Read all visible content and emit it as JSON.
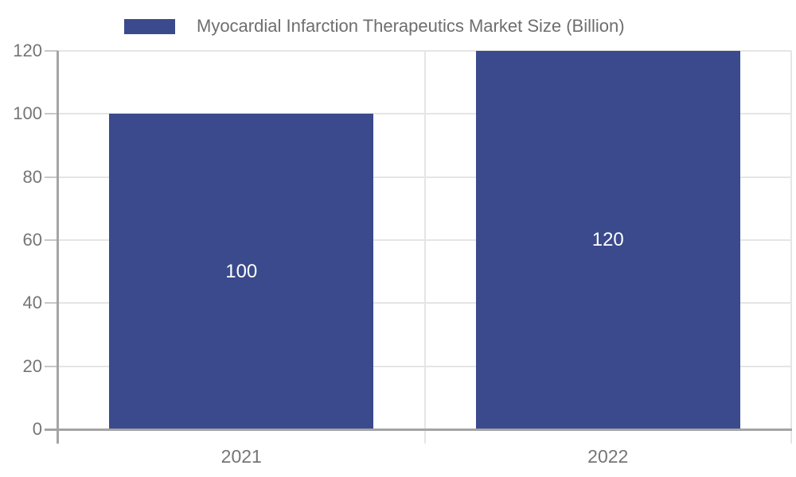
{
  "colors": {
    "bar": "#3a4a8c",
    "axis_line": "#a4a4a4",
    "grid_line": "#e5e5e5",
    "tick_mark": "#c8c8c8",
    "tick_text": "#757575",
    "legend_text": "#6e6e6e",
    "value_label_text": "#ffffff",
    "background": "#ffffff"
  },
  "chart_data": {
    "type": "bar",
    "title": "Myocardial Infarction Therapeutics Market Size (Billion)",
    "categories": [
      "2021",
      "2022"
    ],
    "values": [
      100,
      120
    ],
    "bar_labels": [
      "100",
      "120"
    ],
    "xlabel": "",
    "ylabel": "",
    "ylim": [
      0,
      120
    ],
    "yticks": [
      0,
      20,
      40,
      60,
      80,
      100,
      120
    ],
    "ytick_interval": 20,
    "grid": true,
    "legend_position": "top",
    "legend_entries": [
      "Myocardial Infarction Therapeutics Market Size (Billion)"
    ]
  }
}
